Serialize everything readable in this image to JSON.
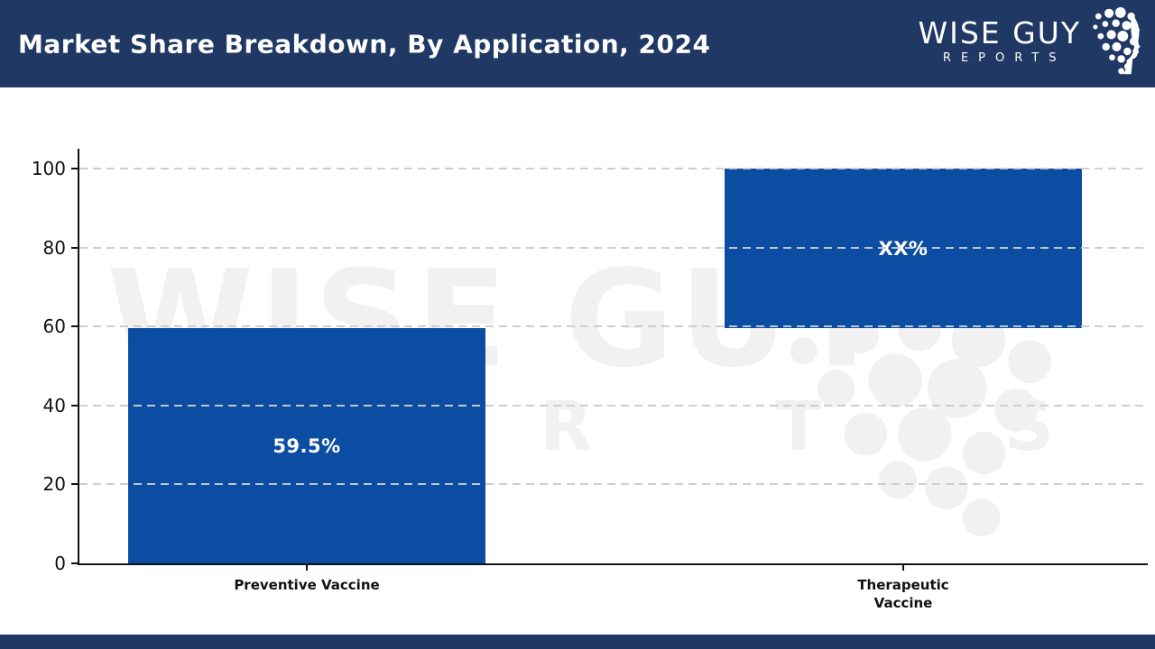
{
  "header": {
    "title": "Market Share Breakdown, By Application, 2024",
    "logo": {
      "name": "WISE GUY",
      "tagline": "REPORTS"
    }
  },
  "watermark": {
    "line1": "WISE GUY",
    "line2": "R T S"
  },
  "chart_data": {
    "type": "bar",
    "title": "Market Share Breakdown, By Application, 2024",
    "categories": [
      "Preventive Vaccine",
      "Therapeutic Vaccine"
    ],
    "bars": [
      {
        "category": "Preventive Vaccine",
        "from": 0,
        "to": 59.5,
        "label": "59.5%",
        "tick_lines": [
          "Preventive Vaccine"
        ]
      },
      {
        "category": "Therapeutic Vaccine",
        "from": 59.5,
        "to": 100,
        "label": "XX%",
        "tick_lines": [
          "Therapeutic",
          "Vaccine"
        ]
      }
    ],
    "ylim": [
      0,
      100
    ],
    "yticks": [
      0,
      20,
      40,
      60,
      80,
      100
    ],
    "xlabel": "",
    "ylabel": "",
    "legend": "none",
    "grid": "horizontal-dashed",
    "grid_over_bars": true,
    "bar_color": "#0b4da2"
  },
  "colors": {
    "banner": "#1f3864",
    "bar": "#0b4da2",
    "grid": "#cbcbcb",
    "axis": "#111111",
    "watermark": "#f1f1f2"
  }
}
